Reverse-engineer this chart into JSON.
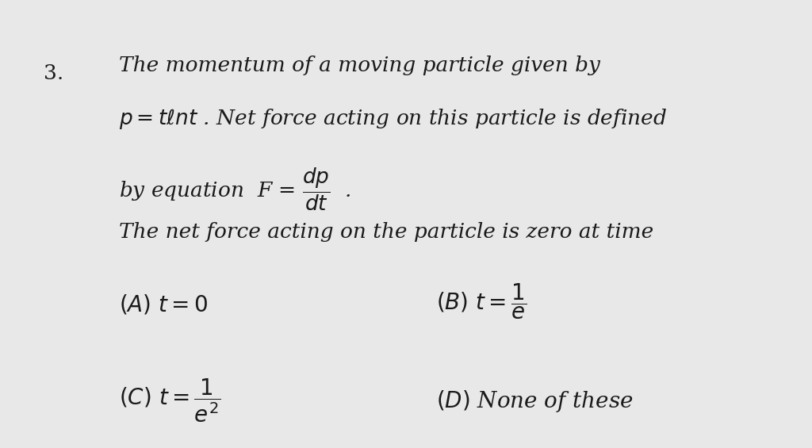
{
  "background_color": "#e8e8e8",
  "question_number": "3.",
  "text_color": "#1a1a1a",
  "fontsize_num": 19,
  "fontsize_main": 19,
  "fontsize_options": 20
}
